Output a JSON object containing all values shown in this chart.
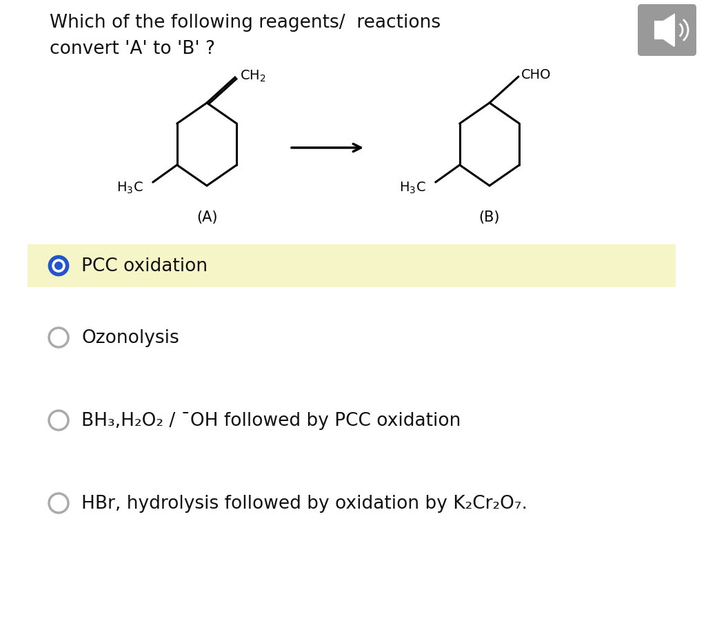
{
  "title_line1": "Which of the following reagents/  reactions",
  "title_line2": "convert 'A' to 'B' ?",
  "title_fontsize": 19,
  "bg_color": "#ffffff",
  "option1_text": "PCC oxidation",
  "option1_selected": true,
  "option1_bg": "#f5f5c8",
  "option2_text": "Ozonolysis",
  "option2_selected": false,
  "option3_text": "BH₃,H₂O₂ / ¯OH followed by PCC oxidation",
  "option3_selected": false,
  "option4_text": "HBr, hydrolysis followed by oxidation by K₂Cr₂O₇.",
  "option4_selected": false,
  "option_fontsize": 19,
  "label_A": "(A)",
  "label_B": "(B)",
  "selected_color": "#2255cc",
  "unselected_color": "#888888"
}
